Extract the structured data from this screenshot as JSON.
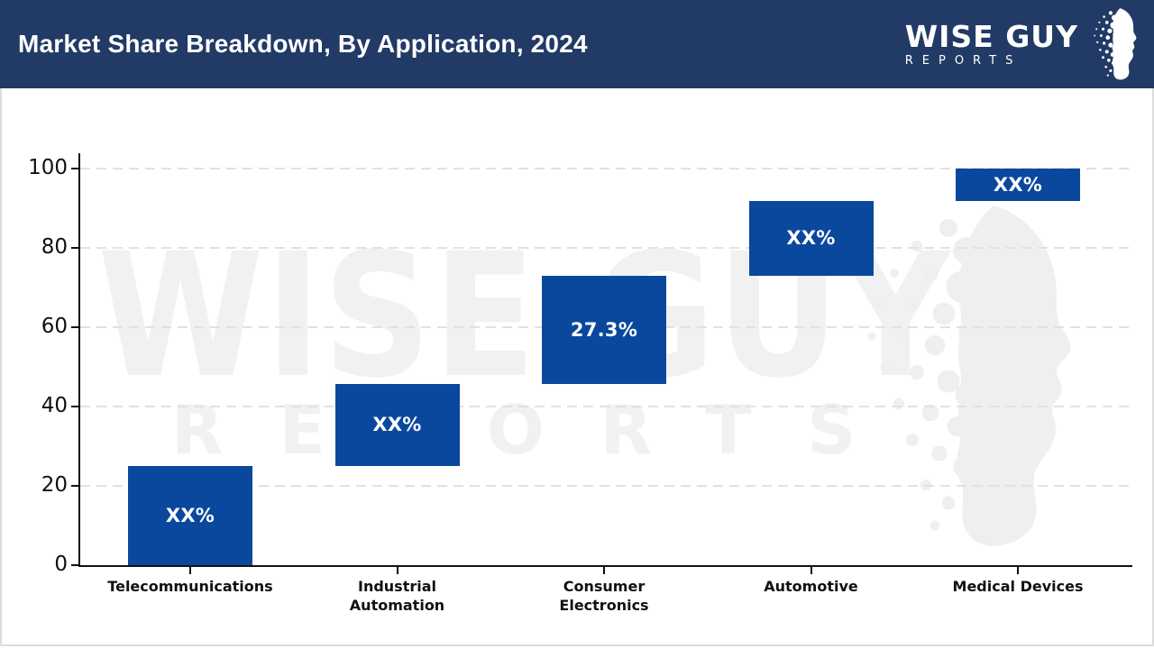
{
  "header": {
    "title": "Market Share Breakdown, By Application, 2024",
    "logo": {
      "line1": "WISE GUY",
      "line2": "REPORTS"
    }
  },
  "watermark": {
    "line1": "WISE GUY",
    "line2": "REPORTS"
  },
  "colors": {
    "header_bg": "#213a66",
    "bar": "#0a489e",
    "grid": "#e1e1e1",
    "axis": "#111111",
    "border": "#dcdcdc",
    "watermark": "#f1f1f1",
    "label_text": "#ffffff"
  },
  "chart_data": {
    "type": "bar",
    "subtype": "waterfall-floating-bars",
    "title": "Market Share Breakdown, By Application, 2024",
    "xlabel": "",
    "ylabel": "",
    "ylim": [
      0,
      100
    ],
    "yticks": [
      0,
      20,
      40,
      60,
      80,
      100
    ],
    "grid": "horizontal-dashed",
    "legend": "none",
    "categories": [
      "Telecommunications",
      "Industrial Automation",
      "Consumer Electronics",
      "Automotive",
      "Medical Devices"
    ],
    "tick_text": [
      "Telecommunications",
      "Industrial\nAutomation",
      "Consumer\nElectronics",
      "Automotive",
      "Medical Devices"
    ],
    "segments": [
      {
        "category": "Telecommunications",
        "start": 0,
        "end": 25,
        "value_pct": 25.0,
        "label": "XX%"
      },
      {
        "category": "Industrial Automation",
        "start": 25,
        "end": 45.7,
        "value_pct": 20.7,
        "label": "XX%"
      },
      {
        "category": "Consumer Electronics",
        "start": 45.7,
        "end": 73,
        "value_pct": 27.3,
        "label": "27.3%"
      },
      {
        "category": "Automotive",
        "start": 73,
        "end": 91.8,
        "value_pct": 18.8,
        "label": "XX%"
      },
      {
        "category": "Medical Devices",
        "start": 91.8,
        "end": 100,
        "value_pct": 8.2,
        "label": "XX%"
      }
    ]
  }
}
